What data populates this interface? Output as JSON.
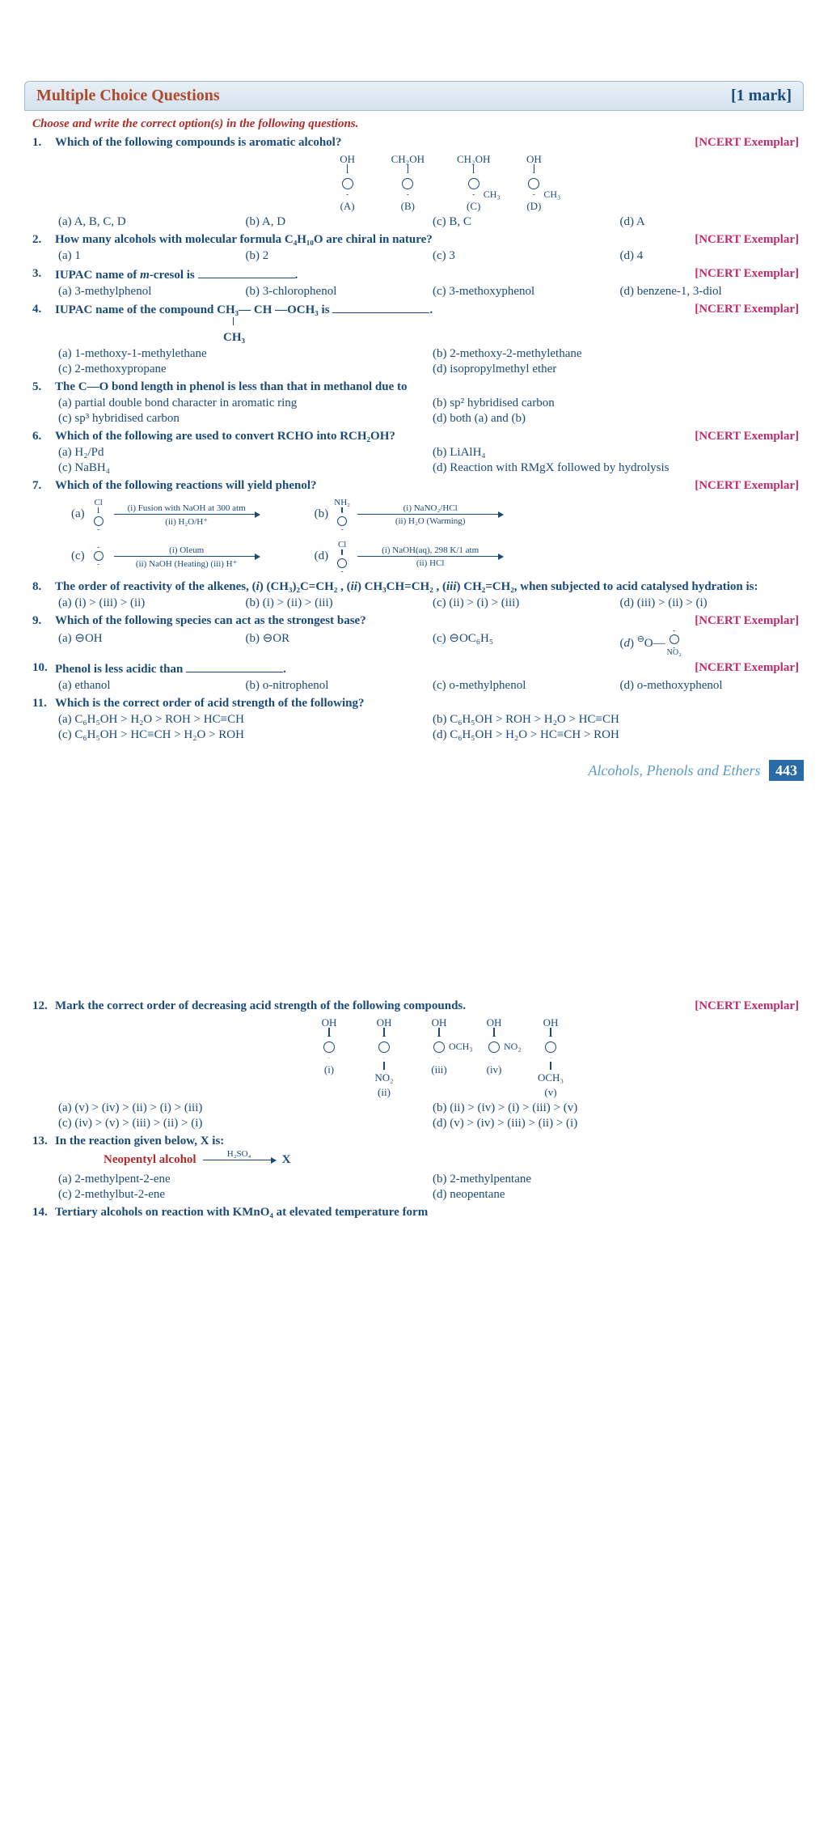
{
  "header": {
    "title": "Multiple Choice Questions",
    "mark": "[1 mark]"
  },
  "instruction": "Choose and write the correct option(s) in the following questions.",
  "exemplar": "[NCERT Exemplar]",
  "structures_q1": {
    "labels": [
      "(A)",
      "(B)",
      "(C)",
      "(D)"
    ],
    "tops": [
      "OH",
      "CH₂OH",
      "CH₂OH",
      "OH"
    ],
    "side": [
      "",
      "",
      "CH₃",
      "CH₃"
    ]
  },
  "structures_q12": {
    "labels": [
      "(i)",
      "(ii)",
      "(iii)",
      "(iv)",
      "(v)"
    ],
    "tops": [
      "OH",
      "OH",
      "OH",
      "OH",
      "OH"
    ],
    "subs": [
      "",
      "NO₂",
      "OCH₃",
      "NO₂",
      "OCH₃"
    ]
  },
  "questions": [
    {
      "n": "1.",
      "text": "Which of the following compounds is aromatic alcohol?",
      "ex": true,
      "opts": [
        "(a) A, B, C, D",
        "(b) A, D",
        "(c) B, C",
        "(d) A"
      ]
    },
    {
      "n": "2.",
      "text": "How many alcohols with molecular formula C₄H₁₀O are chiral in nature?",
      "ex": true,
      "opts": [
        "(a) 1",
        "(b) 2",
        "(c) 3",
        "(d) 4"
      ]
    },
    {
      "n": "3.",
      "text_html": "IUPAC name of <i>m</i>-cresol is <span class='blank'></span>.",
      "ex": true,
      "opts": [
        "(a) 3-methylphenol",
        "(b) 3-chlorophenol",
        "(c) 3-methoxyphenol",
        "(d) benzene-1, 3-diol"
      ]
    },
    {
      "n": "4.",
      "text_html": "IUPAC name of the compound  CH₃— CH —OCH₃  is <span class='blank'></span>.<br><span style='margin-left:220px;display:inline-block;border-left:1.5px solid #1a4a7a;height:10px;vertical-align:top;'></span><br><span style='margin-left:208px;'>CH₃</span>",
      "ex": true,
      "opts2": [
        "(a) 1-methoxy-1-methylethane",
        "(b) 2-methoxy-2-methylethane",
        "(c) 2-methoxypropane",
        "(d) isopropylmethyl ether"
      ]
    },
    {
      "n": "5.",
      "text": "The C—O bond length in phenol is less than that in methanol due to",
      "opts2": [
        "(a) partial double bond character in aromatic ring",
        "(b) sp² hybridised carbon",
        "(c) sp³ hybridised carbon",
        "(d) both (a) and (b)"
      ]
    },
    {
      "n": "6.",
      "text": "Which of the following are used to convert RCHO into RCH₂OH?",
      "ex": true,
      "opts2": [
        "(a) H₂/Pd",
        "(b) LiAlH₄",
        "(c) NaBH₄",
        "(d) Reaction with RMgX followed by hydrolysis"
      ]
    },
    {
      "n": "7.",
      "text": "Which of the following reactions will yield phenol?",
      "ex": true
    },
    {
      "n": "8.",
      "text_html": "The order of reactivity of the alkenes, (<i>i</i>) (CH₃)₂C=CH₂ , (<i>ii</i>) CH₃CH=CH₂ , (<i>iii</i>) CH₂=CH₂, when subjected to acid catalysed hydration is:",
      "opts": [
        "(a) (i) > (iii) > (ii)",
        "(b) (i) > (ii) > (iii)",
        "(c) (ii) > (i) > (iii)",
        "(d) (iii) > (ii) > (i)"
      ]
    },
    {
      "n": "9.",
      "text": "Which of the following species can act as the strongest base?",
      "ex": true,
      "opts_custom": [
        "(a) ⊖OH",
        "(b) ⊖OR",
        "(c) ⊖OC₆H₅",
        "(d) ⊖O—"
      ]
    },
    {
      "n": "10.",
      "text_html": "Phenol is less acidic than <span class='blank'></span>.",
      "ex": true,
      "opts": [
        "(a) ethanol",
        "(b) o-nitrophenol",
        "(c) o-methylphenol",
        "(d) o-methoxyphenol"
      ]
    },
    {
      "n": "11.",
      "text": "Which is the correct order of acid strength of the following?",
      "opts2": [
        "(a) C₆H₅OH > H₂O > ROH > HC≡CH",
        "(b) C₆H₅OH > ROH > H₂O > HC≡CH",
        "(c) C₆H₅OH > HC≡CH > H₂O > ROH",
        "(d) C₆H₅OH > H₂O > HC≡CH > ROH"
      ]
    },
    {
      "n": "12.",
      "text": "Mark the correct order of decreasing acid strength of the following compounds.",
      "ex": true,
      "opts2": [
        "(a) (v) > (iv) > (ii) > (i) > (iii)",
        "(b) (ii) > (iv) > (i) > (iii) > (v)",
        "(c) (iv) > (v) > (iii) > (ii) > (i)",
        "(d) (v) > (iv) > (iii) > (ii) > (i)"
      ]
    },
    {
      "n": "13.",
      "text": "In the reaction given below, X is:",
      "opts2": [
        "(a) 2-methylpent-2-ene",
        "(b) 2-methylpentane",
        "(c) 2-methylbut-2-ene",
        "(d) neopentane"
      ]
    },
    {
      "n": "14.",
      "text": "Tertiary alcohols on reaction with KMnO₄ at elevated temperature form"
    }
  ],
  "rxn7": {
    "a": {
      "top": "Cl",
      "over": "(i) Fusion with NaOH at 300 atm",
      "under": "(ii) H₂O/H⁺"
    },
    "b": {
      "top": "NH₂",
      "over": "(i) NaNO₂/HCl",
      "under": "(ii) H₂O (Warming)"
    },
    "c": {
      "top": "",
      "over": "(i) Oleum",
      "under": "(ii) NaOH (Heating) (iii) H⁺"
    },
    "d": {
      "top": "Cl",
      "over": "(i) NaOH(aq), 298 K/1 atm",
      "under": "(ii) HCl"
    }
  },
  "rxn13": {
    "left": "Neopentyl alcohol",
    "over": "H₂SO₄",
    "right": "X"
  },
  "footer": {
    "title": "Alcohols, Phenols and Ethers",
    "page": "443"
  }
}
